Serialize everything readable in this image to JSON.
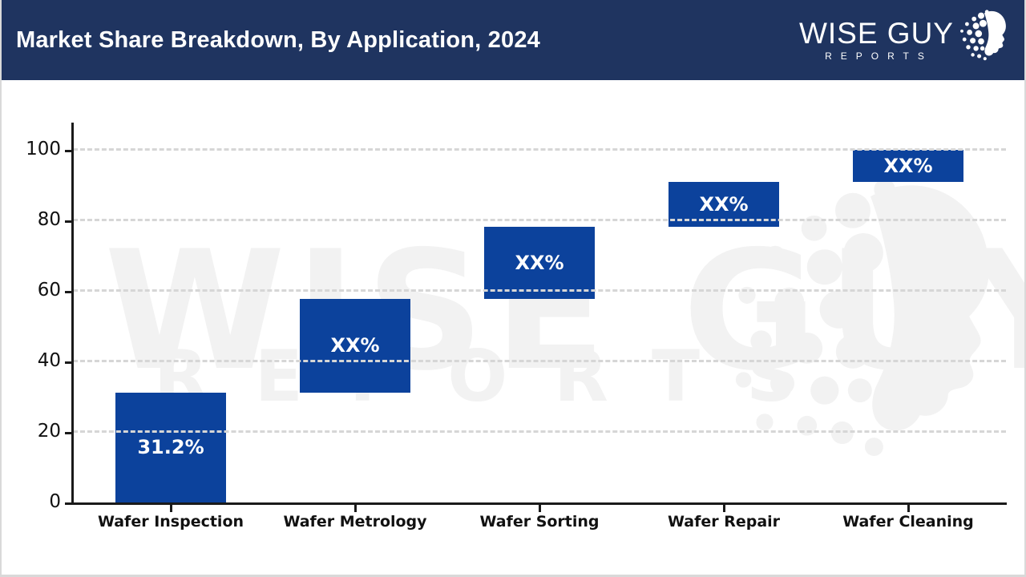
{
  "header": {
    "title": "Market Share Breakdown, By Application, 2024",
    "logo": {
      "line1": "WISE GUY",
      "line2": "REPORTS"
    }
  },
  "watermark": {
    "line1": "WISE GUY",
    "line2": "REPORTS"
  },
  "chart_data": {
    "type": "bar",
    "variant": "floating-waterfall",
    "title": "Market Share Breakdown, By Application, 2024",
    "xlabel": "",
    "ylabel": "",
    "ylim": [
      0,
      107
    ],
    "yticks": [
      0,
      20,
      40,
      60,
      80,
      100
    ],
    "grid": "horizontal-dashed, drawn above bars",
    "legend": "none",
    "categories": [
      "Wafer Inspection",
      "Wafer Metrology",
      "Wafer Sorting",
      "Wafer Repair",
      "Wafer Cleaning"
    ],
    "segments": [
      {
        "category": "Wafer Inspection",
        "start": 0,
        "end": 31.2,
        "label": "31.2%"
      },
      {
        "category": "Wafer Metrology",
        "start": 31.2,
        "end": 57.7,
        "label": "XX%"
      },
      {
        "category": "Wafer Sorting",
        "start": 57.7,
        "end": 78.2,
        "label": "XX%"
      },
      {
        "category": "Wafer Repair",
        "start": 78.2,
        "end": 90.9,
        "label": "XX%"
      },
      {
        "category": "Wafer Cleaning",
        "start": 90.9,
        "end": 100,
        "label": "XX%"
      }
    ],
    "note": "values other than first bar are masked as XX% in the image; starts/ends estimated from gridlines"
  },
  "colors": {
    "header_bg": "#1f3460",
    "title_text": "#ffffff",
    "bar_fill": "#0c429c",
    "bar_label_text": "#ffffff",
    "axis": "#1a1a1a",
    "gridline": "#d6d6d6",
    "watermark": "#f2f2f2",
    "page_border": "#d9d9d9"
  },
  "icons": {
    "logo_head": "dotted-head-profile"
  }
}
